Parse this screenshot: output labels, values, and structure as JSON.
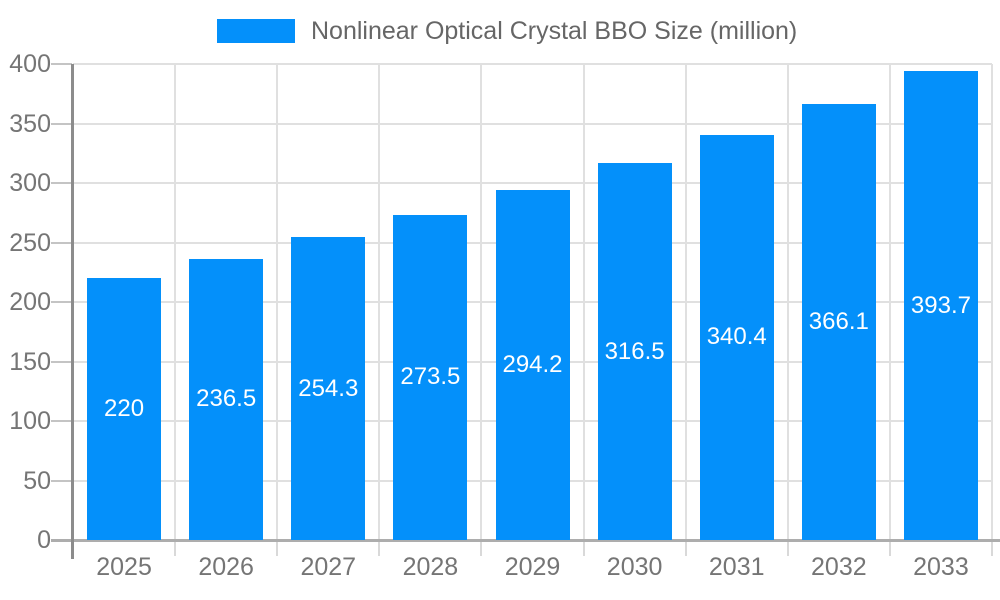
{
  "chart_data": {
    "type": "bar",
    "title": "Nonlinear Optical Crystal BBO Size (million)",
    "legend": [
      "Nonlinear Optical Crystal BBO Size (million)"
    ],
    "legend_position": "top-center",
    "categories": [
      "2025",
      "2026",
      "2027",
      "2028",
      "2029",
      "2030",
      "2031",
      "2032",
      "2033"
    ],
    "values": [
      220,
      236.5,
      254.3,
      273.5,
      294.2,
      316.5,
      340.4,
      366.1,
      393.7
    ],
    "value_labels": [
      "220",
      "236.5",
      "254.3",
      "273.5",
      "294.2",
      "316.5",
      "340.4",
      "366.1",
      "393.7"
    ],
    "xlabel": "",
    "ylabel": "",
    "ylim": [
      0,
      400
    ],
    "ytick_step": 50,
    "ytick_labels": [
      "0",
      "50",
      "100",
      "150",
      "200",
      "250",
      "300",
      "350",
      "400"
    ],
    "grid": true,
    "bar_color": "#0490fa",
    "value_label_color": "#ffffff"
  }
}
